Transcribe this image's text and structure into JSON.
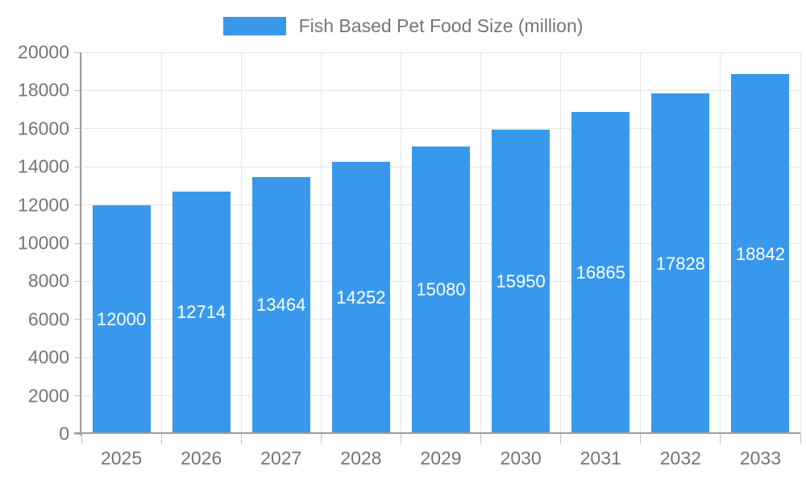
{
  "chart_data": {
    "type": "bar",
    "legend": "Fish Based Pet Food Size (million)",
    "series_name": "Fish Based Pet Food Size (million)",
    "categories": [
      "2025",
      "2026",
      "2027",
      "2028",
      "2029",
      "2030",
      "2031",
      "2032",
      "2033"
    ],
    "values": [
      12000,
      12714,
      13464,
      14252,
      15080,
      15950,
      16865,
      17828,
      18842
    ],
    "xlabel": "",
    "ylabel": "",
    "ylim": [
      0,
      20000
    ],
    "y_ticks": [
      0,
      2000,
      4000,
      6000,
      8000,
      10000,
      12000,
      14000,
      16000,
      18000,
      20000
    ],
    "grid": true,
    "legend_position": "top",
    "bar_value_labels_inside": true,
    "colors": {
      "bar": "#3899EC",
      "bar_value_label": "#FFFFFF",
      "axis_text": "#757575",
      "grid_line": "#E6E6E6",
      "axis_line": "#9E9E9E",
      "tick_line": "#C2C2C2"
    }
  }
}
